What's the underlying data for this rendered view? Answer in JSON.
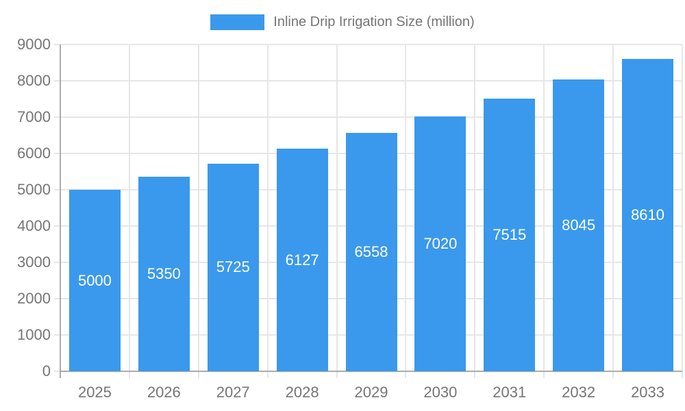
{
  "chart_data": {
    "type": "bar",
    "series_name": "Inline Drip Irrigation Size (million)",
    "categories": [
      "2025",
      "2026",
      "2027",
      "2028",
      "2029",
      "2030",
      "2031",
      "2032",
      "2033"
    ],
    "values": [
      5000,
      5350,
      5725,
      6127,
      6558,
      7020,
      7515,
      8045,
      8610
    ],
    "title": "",
    "xlabel": "",
    "ylabel": "",
    "ylim": [
      0,
      9000
    ],
    "ytick_step": 1000,
    "grid": true,
    "legend_position": "top",
    "data_labels_position": "inside-center",
    "colors": {
      "bar": "#3A99EC",
      "bar_label_text": "#FFFFFF",
      "axis_text": "#757575",
      "grid_line": "#E6E6E6",
      "axis_line": "#ABABAB"
    }
  }
}
